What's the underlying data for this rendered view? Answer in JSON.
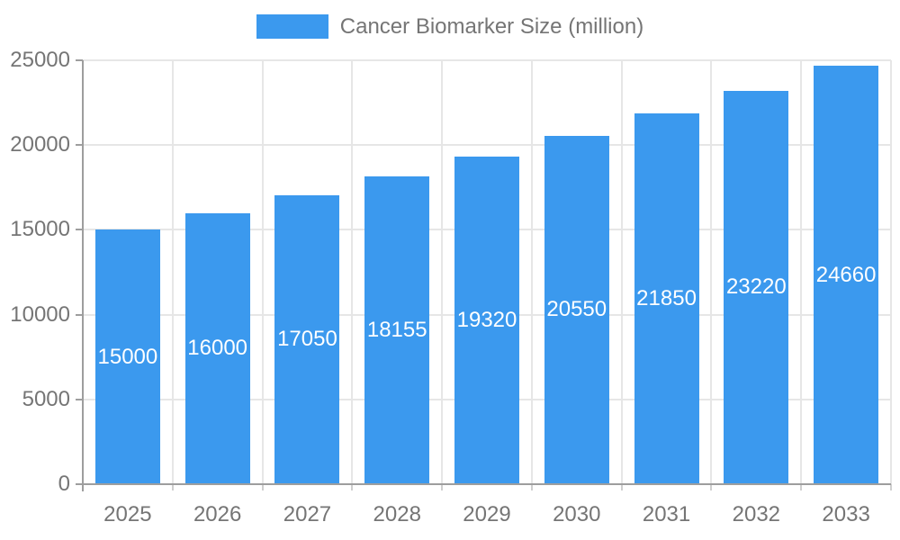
{
  "chart_data": {
    "type": "bar",
    "title": "Cancer Biomarker Size (million)",
    "legend_position": "top",
    "categories": [
      "2025",
      "2026",
      "2027",
      "2028",
      "2029",
      "2030",
      "2031",
      "2032",
      "2033"
    ],
    "values": [
      15000,
      16000,
      17050,
      18155,
      19320,
      20550,
      21850,
      23220,
      24660
    ],
    "value_labels": [
      "15000",
      "16000",
      "17050",
      "18155",
      "19320",
      "20550",
      "21850",
      "23220",
      "24660"
    ],
    "xlabel": "",
    "ylabel": "",
    "ylim": [
      0,
      25000
    ],
    "y_ticks": [
      0,
      5000,
      10000,
      15000,
      20000,
      25000
    ],
    "y_tick_labels": [
      "0",
      "5000",
      "10000",
      "15000",
      "20000",
      "25000"
    ],
    "grid": true,
    "colors": {
      "bar": "#3B99EE",
      "bar_label": "#FFFFFF",
      "axis_text": "#757575",
      "gridline": "#E6E6E6",
      "axis_line": "#9E9E9E",
      "boundary_tick": "#CFCFCF",
      "background": "#FFFFFF"
    }
  }
}
